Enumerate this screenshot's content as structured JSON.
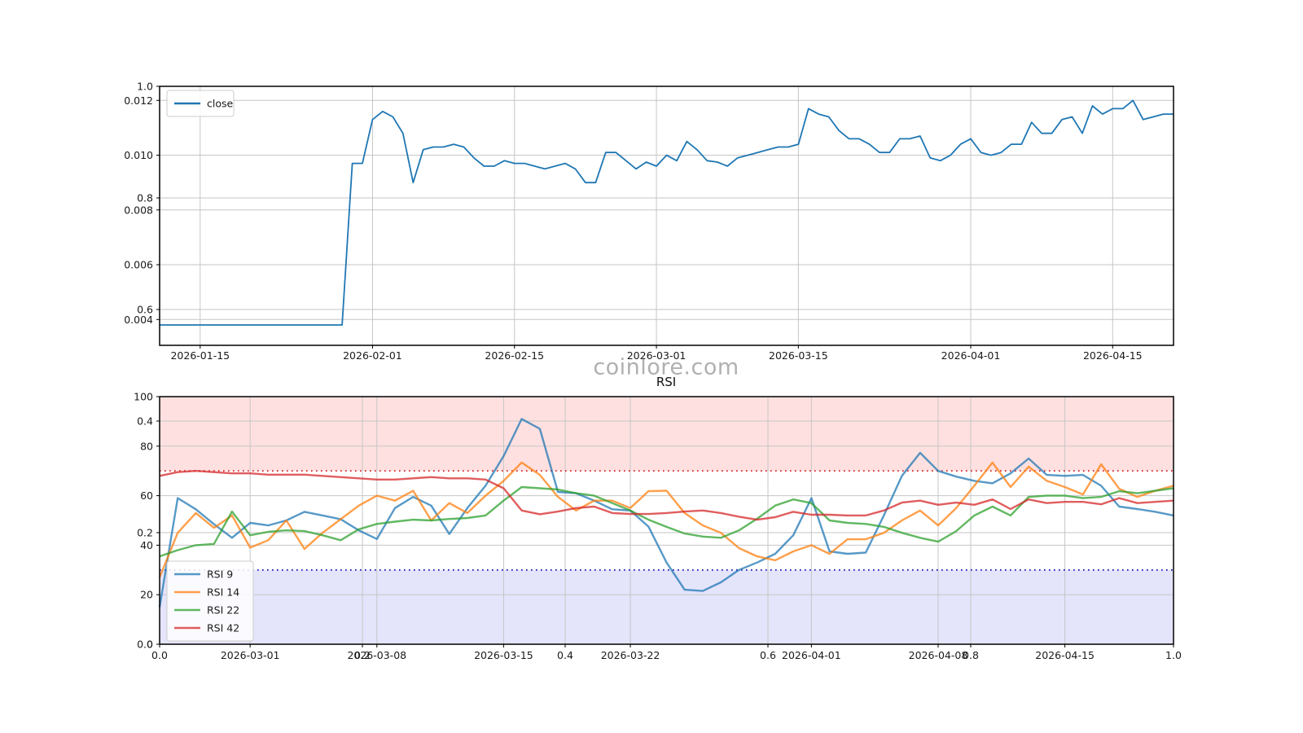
{
  "watermark": "coinlore.com",
  "chart_data": [
    {
      "type": "line",
      "title": "",
      "legend": {
        "position": "upper left",
        "entries": [
          {
            "label": "close",
            "color": "#1f77b4"
          }
        ]
      },
      "x_start_date": "2026-01-11",
      "x_end_date": "2026-04-21",
      "x_ticks": [
        {
          "label": "2026-01-15",
          "day": 4
        },
        {
          "label": "2026-02-01",
          "day": 21
        },
        {
          "label": "2026-02-15",
          "day": 35
        },
        {
          "label": "2026-03-01",
          "day": 49
        },
        {
          "label": "2026-03-15",
          "day": 63
        },
        {
          "label": "2026-04-01",
          "day": 80
        },
        {
          "label": "2026-04-15",
          "day": 94
        }
      ],
      "y_ticks": [
        {
          "label": "0.004",
          "value": 0.004
        },
        {
          "label": "0.006",
          "value": 0.006
        },
        {
          "label": "0.008",
          "value": 0.008
        },
        {
          "label": "0.010",
          "value": 0.01
        },
        {
          "label": "0.012",
          "value": 0.012
        }
      ],
      "series": [
        {
          "name": "close",
          "color": "#1f77b4",
          "width": 1.8,
          "values": [
            0.0038,
            0.0038,
            0.0038,
            0.0038,
            0.0038,
            0.0038,
            0.0038,
            0.0038,
            0.0038,
            0.0038,
            0.0038,
            0.0038,
            0.0038,
            0.0038,
            0.0038,
            0.0038,
            0.0038,
            0.0038,
            0.0038,
            0.0097,
            0.0097,
            0.0113,
            0.0116,
            0.0114,
            0.0108,
            0.009,
            0.0102,
            0.0103,
            0.0103,
            0.0104,
            0.0103,
            0.0099,
            0.0096,
            0.0096,
            0.0098,
            0.0097,
            0.0097,
            0.0096,
            0.0095,
            0.0096,
            0.0097,
            0.0095,
            0.009,
            0.009,
            0.0101,
            0.0101,
            0.0098,
            0.0095,
            0.00975,
            0.0096,
            0.01,
            0.0098,
            0.0105,
            0.0102,
            0.0098,
            0.00975,
            0.0096,
            0.0099,
            0.01,
            0.0101,
            0.0102,
            0.0103,
            0.0103,
            0.0104,
            0.0117,
            0.0115,
            0.0114,
            0.0109,
            0.0106,
            0.0106,
            0.0104,
            0.0101,
            0.0101,
            0.0106,
            0.0106,
            0.0107,
            0.0099,
            0.0098,
            0.01,
            0.0104,
            0.0106,
            0.0101,
            0.01,
            0.0101,
            0.0104,
            0.0104,
            0.0112,
            0.0108,
            0.0108,
            0.0113,
            0.0114,
            0.0108,
            0.0118,
            0.0115,
            0.0117,
            0.0117,
            0.012,
            0.0113,
            0.0114,
            0.0115,
            0.0115
          ]
        }
      ]
    },
    {
      "type": "line",
      "title": "RSI",
      "legend": {
        "position": "lower left",
        "entries": [
          {
            "label": "RSI 9",
            "color": "rgba(31,119,180,0.75)"
          },
          {
            "label": "RSI 14",
            "color": "rgba(255,127,14,0.75)"
          },
          {
            "label": "RSI 22",
            "color": "rgba(44,160,44,0.75)"
          },
          {
            "label": "RSI 42",
            "color": "rgba(214,39,40,0.75)"
          }
        ]
      },
      "x_start_date": "2026-02-24",
      "x_end_date": "2026-04-21",
      "x_ticks": [
        {
          "label": "2026-03-01",
          "day": 5
        },
        {
          "label": "2026-03-08",
          "day": 12
        },
        {
          "label": "2026-03-15",
          "day": 19
        },
        {
          "label": "2026-03-22",
          "day": 26
        },
        {
          "label": "2026-04-01",
          "day": 36
        },
        {
          "label": "2026-04-08",
          "day": 43
        },
        {
          "label": "2026-04-15",
          "day": 50
        }
      ],
      "y_ticks": [
        {
          "label": "0",
          "value": 0
        },
        {
          "label": "20",
          "value": 20
        },
        {
          "label": "40",
          "value": 40
        },
        {
          "label": "60",
          "value": 60
        },
        {
          "label": "80",
          "value": 80
        },
        {
          "label": "100",
          "value": 100
        }
      ],
      "ylim": [
        0,
        100
      ],
      "bands": [
        {
          "from": 70,
          "to": 100,
          "color": "rgba(255,0,0,0.12)",
          "name": "overbought-zone"
        },
        {
          "from": 0,
          "to": 30,
          "color": "rgba(10,10,215,0.11)",
          "name": "oversold-zone"
        }
      ],
      "ref_lines": [
        {
          "value": 70,
          "color": "#d62728",
          "name": "overbought-line"
        },
        {
          "value": 30,
          "color": "#1111bb",
          "name": "oversold-line"
        }
      ],
      "series": [
        {
          "name": "RSI 9",
          "color": "rgba(31,119,180,0.75)",
          "width": 2.4,
          "values": [
            15,
            59,
            54.5,
            48.5,
            43,
            49,
            48,
            50,
            53.5,
            52,
            50.5,
            46,
            42.5,
            55,
            59.5,
            56,
            44.5,
            55,
            64,
            76,
            91,
            87,
            61.5,
            61,
            58,
            54.5,
            54,
            47.5,
            33,
            22,
            21.5,
            25,
            30,
            33,
            36.5,
            44,
            59,
            37.5,
            36.5,
            37,
            52,
            68,
            77.3,
            70,
            67.7,
            66,
            65,
            69,
            75,
            68.4,
            68,
            68.4,
            64,
            55.6,
            54.6,
            53.5,
            52
          ]
        },
        {
          "name": "RSI 14",
          "color": "rgba(255,127,14,0.75)",
          "width": 2.4,
          "values": [
            27,
            45,
            53,
            47,
            52,
            39,
            42,
            50,
            38.5,
            45,
            50.5,
            56,
            60,
            58,
            62,
            50,
            57,
            53,
            60,
            66,
            73.4,
            68.4,
            59.5,
            54,
            58,
            58,
            55,
            61.8,
            62,
            53,
            48,
            45,
            38.8,
            35.5,
            33.9,
            37.5,
            40,
            36.5,
            42.4,
            42.4,
            45,
            50,
            54,
            48,
            55,
            64,
            73.4,
            63.5,
            71.7,
            66,
            63.5,
            60.5,
            72.7,
            62.8,
            59.5,
            62,
            64
          ]
        },
        {
          "name": "RSI 22",
          "color": "rgba(44,160,44,0.75)",
          "width": 2.4,
          "values": [
            35.5,
            38,
            40,
            40.5,
            53.6,
            44,
            45.4,
            46,
            45.7,
            44,
            42,
            46.4,
            48.6,
            49.5,
            50.3,
            50,
            50.6,
            51,
            52,
            58,
            63.5,
            63,
            62.5,
            61,
            60,
            57,
            54,
            50.3,
            47.4,
            44.7,
            43.5,
            43,
            46,
            50.7,
            56,
            58.5,
            57,
            50,
            49,
            48.6,
            47.4,
            45,
            43,
            41.4,
            45.7,
            52,
            55.6,
            52,
            59.5,
            60,
            60,
            59,
            59.5,
            61.8,
            61,
            62,
            63
          ]
        },
        {
          "name": "RSI 42",
          "color": "rgba(214,39,40,0.75)",
          "width": 2.4,
          "values": [
            68,
            69.5,
            70,
            69.5,
            69,
            69,
            68.5,
            68.5,
            68.5,
            68,
            67.5,
            67,
            66.5,
            66.5,
            67,
            67.5,
            67,
            67,
            66.5,
            63,
            54,
            52.5,
            53.6,
            55,
            55.6,
            53,
            52.6,
            52.6,
            53,
            53.6,
            54,
            53,
            51.5,
            50.3,
            51.3,
            53.5,
            52.3,
            52.3,
            52,
            52,
            54,
            57.2,
            58,
            56.3,
            57.2,
            56.3,
            58.5,
            54.6,
            58.5,
            57,
            57.5,
            57.5,
            56.5,
            59,
            57,
            57.5,
            58
          ]
        }
      ]
    }
  ],
  "overlay_axis": {
    "x_ticks": [
      {
        "label": "0.0",
        "value": 0.0
      },
      {
        "label": "0.2",
        "value": 0.2
      },
      {
        "label": "0.4",
        "value": 0.4
      },
      {
        "label": "0.6",
        "value": 0.6
      },
      {
        "label": "0.8",
        "value": 0.8
      },
      {
        "label": "1.0",
        "value": 1.0
      }
    ],
    "y_ticks": [
      {
        "label": "0.0",
        "value": 0.0
      },
      {
        "label": "0.2",
        "value": 0.2
      },
      {
        "label": "0.4",
        "value": 0.4
      },
      {
        "label": "0.6",
        "value": 0.6
      },
      {
        "label": "0.8",
        "value": 0.8
      },
      {
        "label": "1.0",
        "value": 1.0
      }
    ]
  },
  "style": {
    "grid_color": "#c6c6c6",
    "spine_color": "#000000",
    "tick_label_color": "#1a1a1a",
    "legend_border": "#cccccc",
    "legend_bg": "rgba(255,255,255,0.85)"
  }
}
